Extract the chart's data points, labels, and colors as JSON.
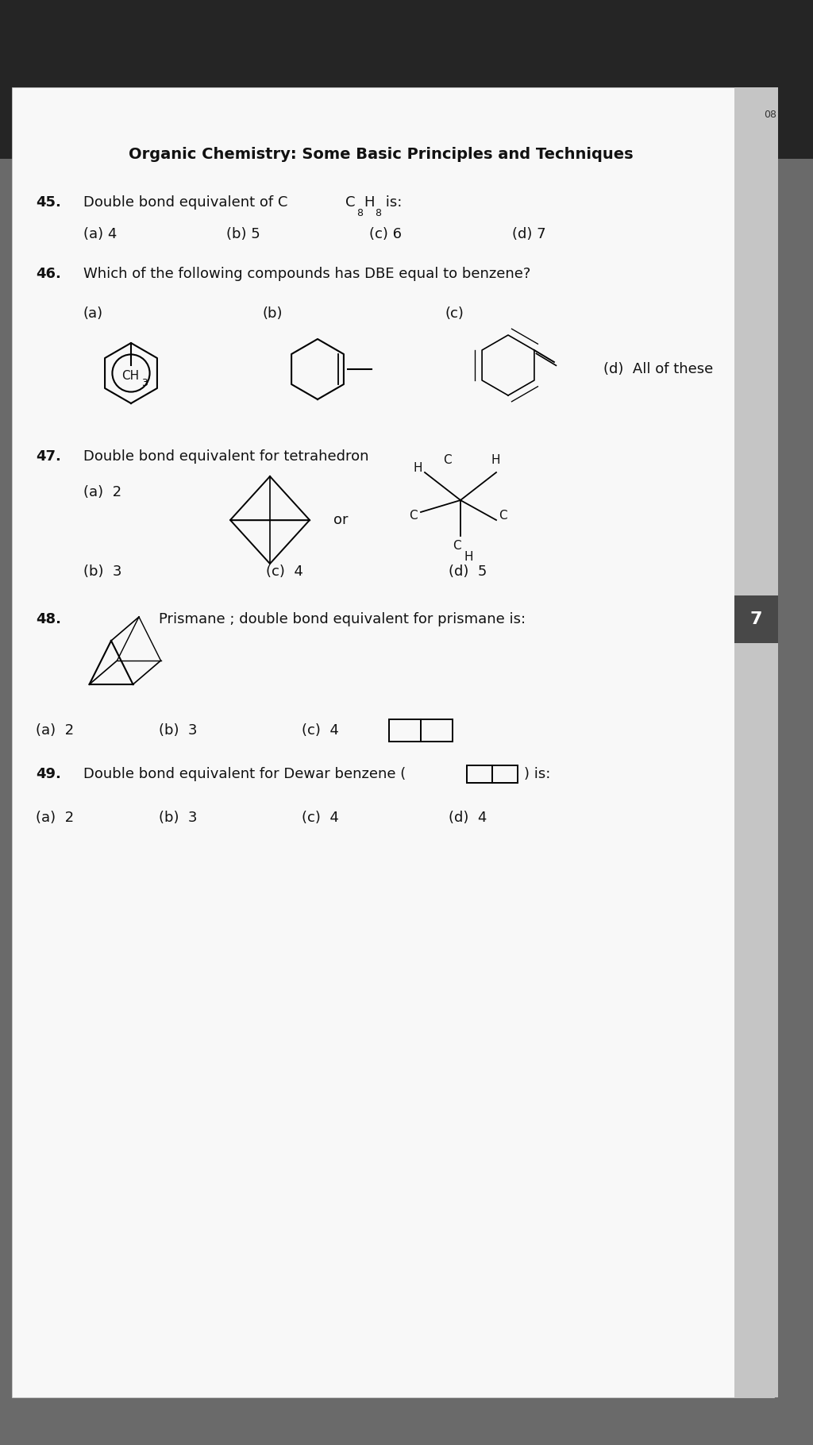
{
  "title": "Organic Chemistry: Some Basic Principles and Techniques",
  "page_number": "7",
  "bg_color": "#6a6a6a",
  "page_bg": "#f5f5f5",
  "white_page": "#ffffff",
  "dark_top_color": "#2d2d2d",
  "gray_bar_color": "#c8c8c8",
  "page_num_bg": "#4a4a4a",
  "text_color": "#111111",
  "q45_text": "Double bond equivalent of C",
  "q45_sub1": "8",
  "q45_h": "H",
  "q45_sub2": "8",
  "q45_end": " is:",
  "q45_opts": [
    "(a) 4",
    "(b) 5",
    "(c) 6",
    "(d) 7"
  ],
  "q46_text": "Which of the following compounds has DBE equal to benzene?",
  "q46_opts_labels": [
    "(a)",
    "(b)",
    "(c)",
    "(d) All of these"
  ],
  "q47_text": "Double bond equivalent for tetrahedron",
  "q47_opts": [
    "(a) 2",
    "(b) 3",
    "(c) 4",
    "(d) 5"
  ],
  "q48_text": "Prismane ; double bond equivalent for prismane is:",
  "q48_opts": [
    "(a) 2",
    "(b) 3",
    "(c) 4"
  ],
  "q49_text": "Double bond equivalent for Dewar benzene (",
  "q49_end": ") is:",
  "q49_opts": [
    "(a) 2",
    "(b) 3",
    "(c) 4",
    "(d) 4"
  ]
}
